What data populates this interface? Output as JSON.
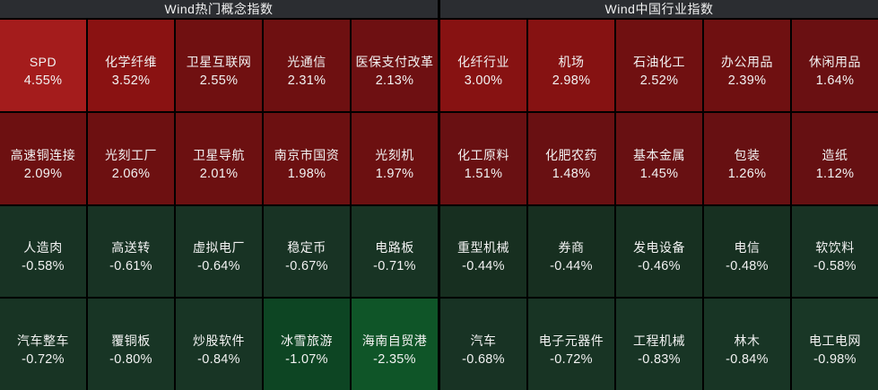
{
  "colors": {
    "header_bg": "#2b2d31",
    "grid_line": "#000000",
    "text": "#f2f2f2"
  },
  "chart_data": {
    "type": "heatmap",
    "note": "sector index heatmap; red = gain, green = loss",
    "sections": [
      {
        "title": "Wind热门概念指数",
        "cells": [
          {
            "name": "SPD",
            "change": "4.55%",
            "color": "#a41c1c"
          },
          {
            "name": "化学纤维",
            "change": "3.52%",
            "color": "#8a1212"
          },
          {
            "name": "卫星互联网",
            "change": "2.55%",
            "color": "#701011"
          },
          {
            "name": "光通信",
            "change": "2.31%",
            "color": "#6e1011"
          },
          {
            "name": "医保支付改革",
            "change": "2.13%",
            "color": "#6e1012"
          },
          {
            "name": "高速铜连接",
            "change": "2.09%",
            "color": "#6d1011"
          },
          {
            "name": "光刻工厂",
            "change": "2.06%",
            "color": "#6d1011"
          },
          {
            "name": "卫星导航",
            "change": "2.01%",
            "color": "#6c1011"
          },
          {
            "name": "南京市国资",
            "change": "1.98%",
            "color": "#6c1011"
          },
          {
            "name": "光刻机",
            "change": "1.97%",
            "color": "#6c1011"
          },
          {
            "name": "人造肉",
            "change": "-0.58%",
            "color": "#183324"
          },
          {
            "name": "高送转",
            "change": "-0.61%",
            "color": "#183324"
          },
          {
            "name": "虚拟电厂",
            "change": "-0.64%",
            "color": "#183324"
          },
          {
            "name": "稳定币",
            "change": "-0.67%",
            "color": "#183324"
          },
          {
            "name": "电路板",
            "change": "-0.71%",
            "color": "#183424"
          },
          {
            "name": "汽车整车",
            "change": "-0.72%",
            "color": "#183424"
          },
          {
            "name": "覆铜板",
            "change": "-0.80%",
            "color": "#183525"
          },
          {
            "name": "炒股软件",
            "change": "-0.84%",
            "color": "#183525"
          },
          {
            "name": "冰雪旅游",
            "change": "-1.07%",
            "color": "#0d4523"
          },
          {
            "name": "海南自贸港",
            "change": "-2.35%",
            "color": "#0f5528"
          }
        ]
      },
      {
        "title": "Wind中国行业指数",
        "cells": [
          {
            "name": "化纤行业",
            "change": "3.00%",
            "color": "#871212"
          },
          {
            "name": "机场",
            "change": "2.98%",
            "color": "#861212"
          },
          {
            "name": "石油化工",
            "change": "2.52%",
            "color": "#701011"
          },
          {
            "name": "办公用品",
            "change": "2.39%",
            "color": "#6f1011"
          },
          {
            "name": "休闲用品",
            "change": "1.64%",
            "color": "#6a1012"
          },
          {
            "name": "化工原料",
            "change": "1.51%",
            "color": "#691012"
          },
          {
            "name": "化肥农药",
            "change": "1.48%",
            "color": "#691012"
          },
          {
            "name": "基本金属",
            "change": "1.45%",
            "color": "#681012"
          },
          {
            "name": "包装",
            "change": "1.26%",
            "color": "#671012"
          },
          {
            "name": "造纸",
            "change": "1.12%",
            "color": "#661012"
          },
          {
            "name": "重型机械",
            "change": "-0.44%",
            "color": "#172f20"
          },
          {
            "name": "券商",
            "change": "-0.44%",
            "color": "#172f20"
          },
          {
            "name": "发电设备",
            "change": "-0.46%",
            "color": "#173021"
          },
          {
            "name": "电信",
            "change": "-0.48%",
            "color": "#173021"
          },
          {
            "name": "软饮料",
            "change": "-0.58%",
            "color": "#183324"
          },
          {
            "name": "汽车",
            "change": "-0.68%",
            "color": "#183324"
          },
          {
            "name": "电子元器件",
            "change": "-0.72%",
            "color": "#183424"
          },
          {
            "name": "工程机械",
            "change": "-0.83%",
            "color": "#183525"
          },
          {
            "name": "林木",
            "change": "-0.84%",
            "color": "#183525"
          },
          {
            "name": "电工电网",
            "change": "-0.98%",
            "color": "#193726"
          }
        ]
      }
    ]
  }
}
